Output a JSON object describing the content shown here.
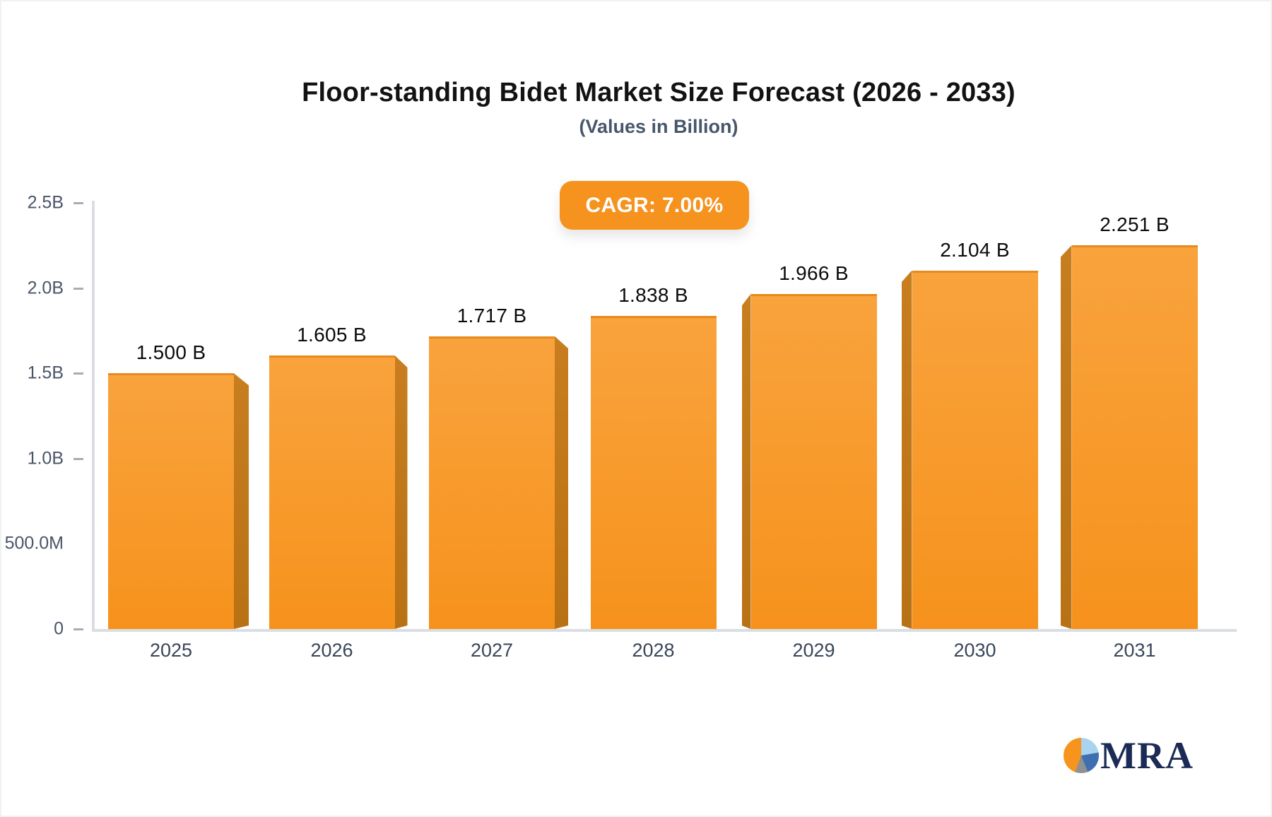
{
  "title": "Floor-standing Bidet Market Size Forecast (2026 - 2033)",
  "subtitle": "(Values in Billion)",
  "badge": {
    "label": "CAGR: 7.00%",
    "color": "#f6921e"
  },
  "chart_data": {
    "type": "bar",
    "title": "Floor-standing Bidet Market Size Forecast (2026 - 2033)",
    "subtitle": "(Values in Billion)",
    "categories": [
      "2025",
      "2026",
      "2027",
      "2028",
      "2029",
      "2030",
      "2031"
    ],
    "values": [
      1.5,
      1.605,
      1.717,
      1.838,
      1.966,
      2.104,
      2.251
    ],
    "value_labels": [
      "1.500 B",
      "1.605 B",
      "1.717 B",
      "1.838 B",
      "1.966 B",
      "2.104 B",
      "2.251 B"
    ],
    "xlabel": "",
    "ylabel": "",
    "ylim": [
      0,
      2.5
    ],
    "grid": false,
    "legend": false,
    "yticks": [
      {
        "label": "0",
        "value": 0,
        "dash": true
      },
      {
        "label": "500.0M",
        "value": 0.5,
        "dash": false
      },
      {
        "label": "1.0B",
        "value": 1.0,
        "dash": true
      },
      {
        "label": "1.5B",
        "value": 1.5,
        "dash": true
      },
      {
        "label": "2.0B",
        "value": 2.0,
        "dash": true
      },
      {
        "label": "2.5B",
        "value": 2.5,
        "dash": true
      }
    ],
    "colors": {
      "bar_face_top": "#f9a33d",
      "bar_face_bottom": "#f6921c",
      "bar_side": "#c1781b",
      "axis_line": "#dadde2",
      "tick_text": "#4a5568",
      "category_text": "#39465a",
      "value_text": "#0b0b0b"
    }
  },
  "logo": {
    "text": "MRA",
    "pie_colors": {
      "orange": "#f6941d",
      "light_blue": "#a9d3ee",
      "blue": "#3e6fb0",
      "gray": "#8f9193"
    },
    "text_color": "#1b2b55"
  }
}
